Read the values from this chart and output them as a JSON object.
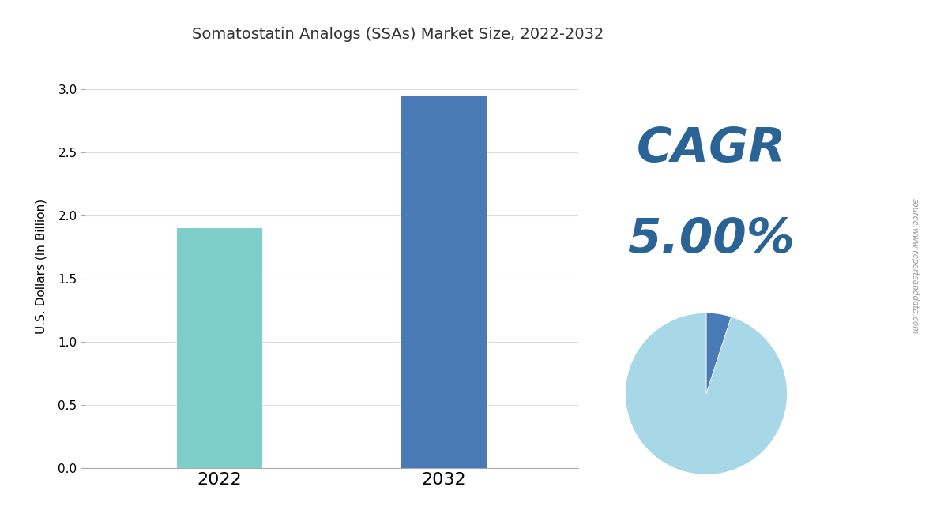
{
  "title": "Somatostatin Analogs (SSAs) Market Size, 2022-2032",
  "title_fontsize": 14,
  "bar_categories": [
    "2022",
    "2032"
  ],
  "bar_values": [
    1.9,
    2.95
  ],
  "bar_colors": [
    "#7ECECA",
    "#4A7AB5"
  ],
  "ylabel": "U.S. Dollars (In Billion)",
  "ylim": [
    0,
    3.2
  ],
  "yticks": [
    0.0,
    0.5,
    1.0,
    1.5,
    2.0,
    2.5,
    3.0
  ],
  "cagr_text_line1": "CAGR",
  "cagr_text_line2": "5.00%",
  "cagr_color": "#2A6496",
  "pie_values": [
    5.0,
    95.0
  ],
  "pie_colors": [
    "#4A7AB5",
    "#A8D8E8"
  ],
  "source_text": "source:www.reportsanddata.com",
  "background_color": "#FFFFFF"
}
